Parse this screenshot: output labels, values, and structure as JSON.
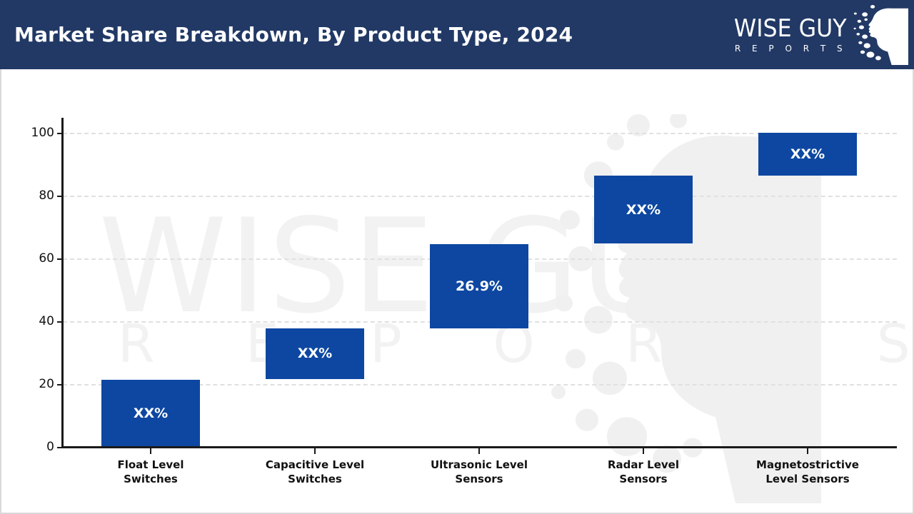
{
  "page": {
    "bg_color": "#ffffff",
    "edge_color": "#d9d9d9"
  },
  "header": {
    "bg_color": "#223966",
    "title": "Market Share Breakdown, By Product Type, 2024",
    "logo": {
      "line1": "WISE GUY",
      "line2": "R E P O R T S"
    }
  },
  "watermark": {
    "line1": "WISE GUY",
    "line2": "R E P O R T S"
  },
  "chart_data": {
    "type": "bar",
    "variant": "waterfall-segmented-market-share",
    "title": "Market Share Breakdown, By Product Type, 2024",
    "categories": [
      "Float Level Switches",
      "Capacitive Level Switches",
      "Ultrasonic Level Sensors",
      "Radar Level Sensors",
      "Magnetostrictive Level Sensors"
    ],
    "category_label_lines": [
      [
        "Float Level",
        "Switches"
      ],
      [
        "Capacitive Level",
        "Switches"
      ],
      [
        "Ultrasonic Level",
        "Sensors"
      ],
      [
        "Radar Level",
        "Sensors"
      ],
      [
        "Magnetostrictive",
        "Level Sensors"
      ]
    ],
    "segments": [
      {
        "category": "Float Level Switches",
        "start": 0,
        "end": 21.6,
        "label": "XX%"
      },
      {
        "category": "Capacitive Level Switches",
        "start": 21.9,
        "end": 37.9,
        "label": "XX%"
      },
      {
        "category": "Ultrasonic Level Sensors",
        "start": 37.9,
        "end": 64.8,
        "label": "26.9%"
      },
      {
        "category": "Radar Level Sensors",
        "start": 64.9,
        "end": 86.6,
        "label": "XX%"
      },
      {
        "category": "Magnetostrictive Level Sensors",
        "start": 86.7,
        "end": 100.3,
        "label": "XX%"
      }
    ],
    "ylim": [
      0,
      105
    ],
    "yticks": [
      0,
      20,
      40,
      60,
      80,
      100
    ],
    "xlabel": "",
    "ylabel": "",
    "grid": "horizontal-dashed",
    "legend": "none",
    "bar_color": "#0d47a1",
    "bar_label_color": "#ffffff",
    "axis_color": "#1a1a1a",
    "gridline_color": "#e0e0e0",
    "tick_label_color": "#111111"
  }
}
